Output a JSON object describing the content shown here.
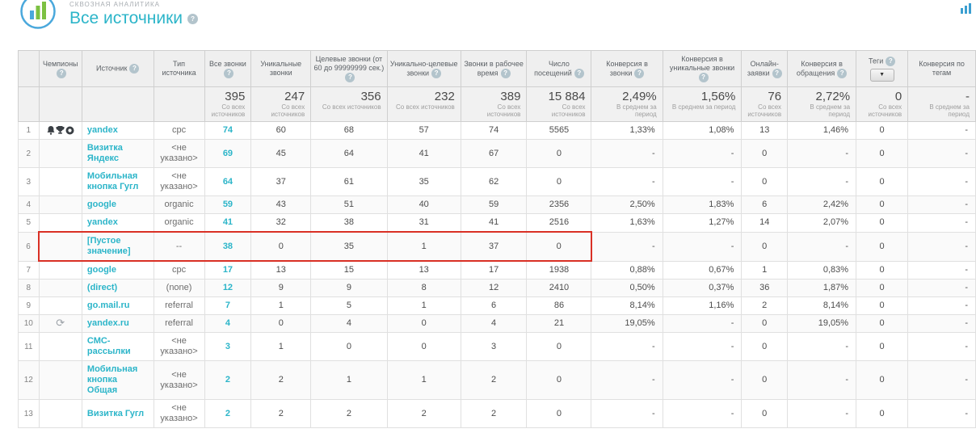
{
  "colors": {
    "accent": "#2cb5c9",
    "highlight_border": "#d93025",
    "header_bg": "#efefef"
  },
  "header": {
    "breadcrumb": "СКВОЗНАЯ АНАЛИТИКА",
    "title": "Все источники",
    "help_glyph": "?"
  },
  "table": {
    "columns": [
      {
        "key": "row_num",
        "label": "",
        "help": false
      },
      {
        "key": "champions",
        "label": "Чемпионы",
        "help": true
      },
      {
        "key": "source",
        "label": "Источник",
        "help": true
      },
      {
        "key": "source_type",
        "label": "Тип источника",
        "help": false
      },
      {
        "key": "all_calls",
        "label": "Все звонки",
        "help": true
      },
      {
        "key": "unique_calls",
        "label": "Уникальные звонки",
        "help": false
      },
      {
        "key": "target_calls",
        "label": "Целевые звонки (от 60 до 99999999 сек.)",
        "help": true
      },
      {
        "key": "unique_target_calls",
        "label": "Уникально-целевые звонки",
        "help": true
      },
      {
        "key": "worktime_calls",
        "label": "Звонки в рабочее время",
        "help": true
      },
      {
        "key": "visits",
        "label": "Число посещений",
        "help": true
      },
      {
        "key": "conv_calls",
        "label": "Конверсия в звонки",
        "help": true
      },
      {
        "key": "conv_unique_calls",
        "label": "Конверсия в уникальные звонки",
        "help": true
      },
      {
        "key": "online_leads",
        "label": "Онлайн-заявки",
        "help": true
      },
      {
        "key": "conv_leads",
        "label": "Конверсия в обращения",
        "help": true
      },
      {
        "key": "tags",
        "label": "Теги",
        "help": true,
        "dropdown": true
      },
      {
        "key": "conv_tags",
        "label": "Конверсия по тегам",
        "help": false
      }
    ],
    "totals": [
      {
        "value": "395",
        "caption": "Со всех источников"
      },
      {
        "value": "247",
        "caption": "Со всех источников"
      },
      {
        "value": "356",
        "caption": "Со всех источников"
      },
      {
        "value": "232",
        "caption": "Со всех источников"
      },
      {
        "value": "389",
        "caption": "Со всех источников"
      },
      {
        "value": "15 884",
        "caption": "Со всех источников"
      },
      {
        "value": "2,49%",
        "caption": "В среднем за период"
      },
      {
        "value": "1,56%",
        "caption": "В среднем за период"
      },
      {
        "value": "76",
        "caption": "Со всех источников"
      },
      {
        "value": "2,72%",
        "caption": "В среднем за период"
      },
      {
        "value": "0",
        "caption": "Со всех источников"
      },
      {
        "value": "-",
        "caption": "В среднем за период"
      }
    ],
    "rows": [
      {
        "num": "1",
        "champions": [
          "bell-icon",
          "trophy-icon",
          "medal-icon"
        ],
        "source": "yandex",
        "type": "cpc",
        "cells": [
          "74",
          "60",
          "68",
          "57",
          "74",
          "5565",
          "1,33%",
          "1,08%",
          "13",
          "1,46%",
          "0",
          "-"
        ]
      },
      {
        "num": "2",
        "champions": [],
        "source": "Визитка Яндекс",
        "type": "<не указано>",
        "cells": [
          "69",
          "45",
          "64",
          "41",
          "67",
          "0",
          "-",
          "-",
          "0",
          "-",
          "0",
          "-"
        ]
      },
      {
        "num": "3",
        "champions": [],
        "source": "Мобильная кнопка Гугл",
        "type": "<не указано>",
        "cells": [
          "64",
          "37",
          "61",
          "35",
          "62",
          "0",
          "-",
          "-",
          "0",
          "-",
          "0",
          "-"
        ]
      },
      {
        "num": "4",
        "champions": [],
        "source": "google",
        "type": "organic",
        "cells": [
          "59",
          "43",
          "51",
          "40",
          "59",
          "2356",
          "2,50%",
          "1,83%",
          "6",
          "2,42%",
          "0",
          "-"
        ]
      },
      {
        "num": "5",
        "champions": [],
        "source": "yandex",
        "type": "organic",
        "cells": [
          "41",
          "32",
          "38",
          "31",
          "41",
          "2516",
          "1,63%",
          "1,27%",
          "14",
          "2,07%",
          "0",
          "-"
        ]
      },
      {
        "num": "6",
        "highlight": true,
        "champions": [],
        "source": "[Пустое значение]",
        "type": "--",
        "cells": [
          "38",
          "0",
          "35",
          "1",
          "37",
          "0",
          "-",
          "-",
          "0",
          "-",
          "0",
          "-"
        ]
      },
      {
        "num": "7",
        "champions": [],
        "source": "google",
        "type": "cpc",
        "cells": [
          "17",
          "13",
          "15",
          "13",
          "17",
          "1938",
          "0,88%",
          "0,67%",
          "1",
          "0,83%",
          "0",
          "-"
        ]
      },
      {
        "num": "8",
        "champions": [],
        "source": "(direct)",
        "type": "(none)",
        "cells": [
          "12",
          "9",
          "9",
          "8",
          "12",
          "2410",
          "0,50%",
          "0,37%",
          "36",
          "1,87%",
          "0",
          "-"
        ]
      },
      {
        "num": "9",
        "champions": [],
        "source": "go.mail.ru",
        "type": "referral",
        "cells": [
          "7",
          "1",
          "5",
          "1",
          "6",
          "86",
          "8,14%",
          "1,16%",
          "2",
          "8,14%",
          "0",
          "-"
        ]
      },
      {
        "num": "10",
        "champions": [
          "refresh-icon"
        ],
        "source": "yandex.ru",
        "type": "referral",
        "cells": [
          "4",
          "0",
          "4",
          "0",
          "4",
          "21",
          "19,05%",
          "-",
          "0",
          "19,05%",
          "0",
          "-"
        ]
      },
      {
        "num": "11",
        "champions": [],
        "source": "СМС-рассылки",
        "type": "<не указано>",
        "cells": [
          "3",
          "1",
          "0",
          "0",
          "3",
          "0",
          "-",
          "-",
          "0",
          "-",
          "0",
          "-"
        ]
      },
      {
        "num": "12",
        "champions": [],
        "source": "Мобильная кнопка Общая",
        "type": "<не указано>",
        "cells": [
          "2",
          "2",
          "1",
          "1",
          "2",
          "0",
          "-",
          "-",
          "0",
          "-",
          "0",
          "-"
        ]
      },
      {
        "num": "13",
        "champions": [],
        "source": "Визитка Гугл",
        "type": "<не указано>",
        "cells": [
          "2",
          "2",
          "2",
          "2",
          "2",
          "0",
          "-",
          "-",
          "0",
          "-",
          "0",
          "-"
        ]
      }
    ]
  }
}
